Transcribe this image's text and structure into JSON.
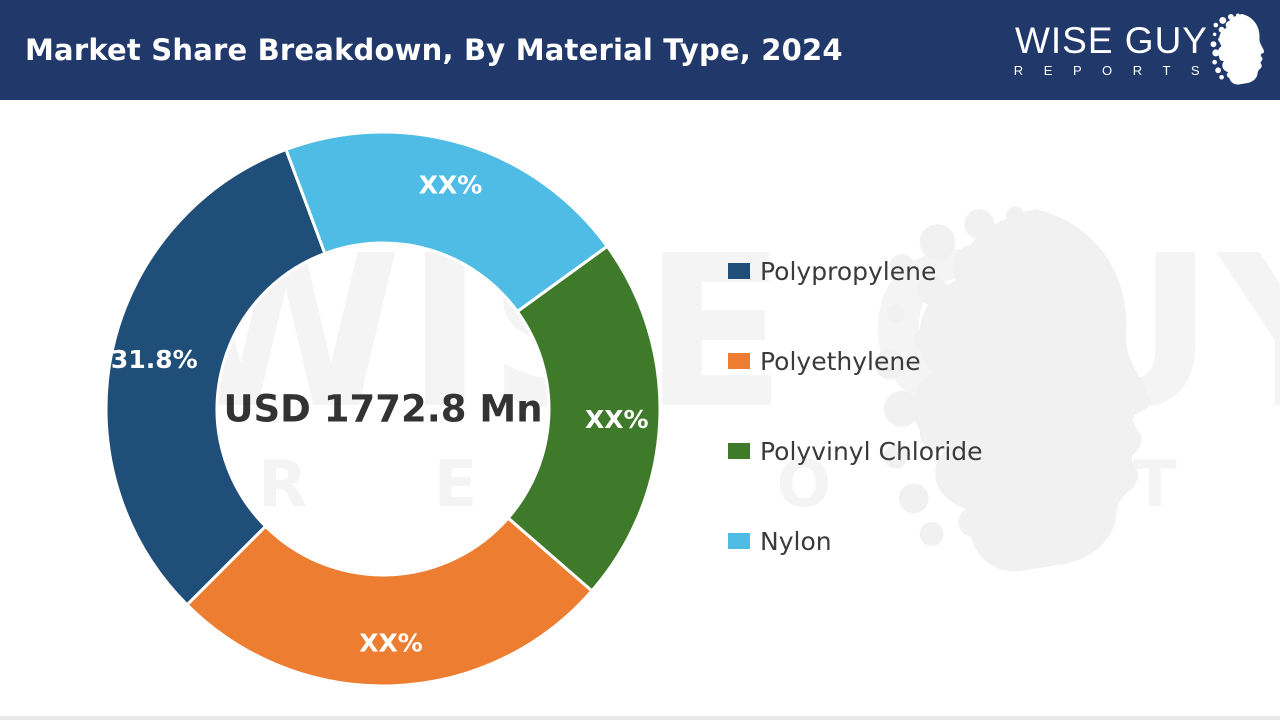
{
  "header": {
    "title": "Market Share Breakdown, By Material Type, 2024",
    "brand": {
      "name": "WISE GUY",
      "sub": "R E P O R T S"
    }
  },
  "watermark": {
    "line1": "WISE GUY",
    "line2": "R E P O R T S"
  },
  "chart_data": {
    "type": "donut",
    "title": "Market Share Breakdown, By Material Type, 2024",
    "center_label": "USD 1772.8 Mn",
    "start_angle_deg_clockwise_from_top": 339.5,
    "direction": "counterclockwise",
    "donut_hole_ratio": 0.6,
    "legend_position": "right",
    "segments": [
      {
        "name": "Polypropylene",
        "display_label": "31.8%",
        "value_pct": 31.8,
        "color": "#1F4E79"
      },
      {
        "name": "Polyethylene",
        "display_label": "XX%",
        "value_pct": 26.1,
        "color": "#ED7D31"
      },
      {
        "name": "Polyvinyl Chloride",
        "display_label": "XX%",
        "value_pct": 21.4,
        "color": "#3F7A2B"
      },
      {
        "name": "Nylon",
        "display_label": "XX%",
        "value_pct": 20.7,
        "color": "#4FBCE5"
      }
    ]
  },
  "colors": {
    "header_bg": "#21386B",
    "title_text": "#FFFFFF",
    "center_text": "#333333",
    "legend_text": "#3A3A3A",
    "watermark_gray": "#F2F2F2",
    "bottom_strip": "#E9E9E9",
    "slice_separator": "#FFFFFF"
  }
}
